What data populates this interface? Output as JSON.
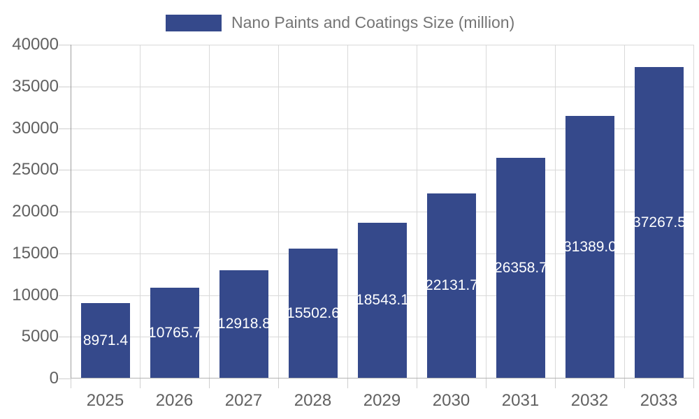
{
  "legend": {
    "label": "Nano Paints and Coatings Size (million)"
  },
  "colors": {
    "bar": "#35498B",
    "grid": "#d9d9d9",
    "y_axis_line": "#9e9e9e",
    "baseline": "#b3b3b3",
    "tick": "#cfcfcf",
    "tick_text": "#616161",
    "legend_text": "#757575",
    "value_text": "#ffffff"
  },
  "chart_data": {
    "type": "bar",
    "title": "",
    "legend_entries": [
      "Nano Paints and Coatings Size (million)"
    ],
    "legend_position": "top",
    "categories": [
      "2025",
      "2026",
      "2027",
      "2028",
      "2029",
      "2030",
      "2031",
      "2032",
      "2033"
    ],
    "series": [
      {
        "name": "Nano Paints and Coatings Size (million)",
        "values": [
          8971.4,
          10765.7,
          12918.8,
          15502.6,
          18543.1,
          22131.7,
          26358.7,
          31389.0,
          37267.5
        ],
        "labels": [
          "8971.4",
          "10765.7",
          "12918.8",
          "15502.6",
          "18543.1",
          "22131.7",
          "26358.7",
          "31389.0",
          "37267.5"
        ]
      }
    ],
    "xlabel": "",
    "ylabel": "",
    "ylim": [
      0,
      40000
    ],
    "ytick_step": 5000,
    "yticks": [
      0,
      5000,
      10000,
      15000,
      20000,
      25000,
      30000,
      35000,
      40000
    ],
    "grid": true,
    "value_labels_position": "inside-center"
  }
}
